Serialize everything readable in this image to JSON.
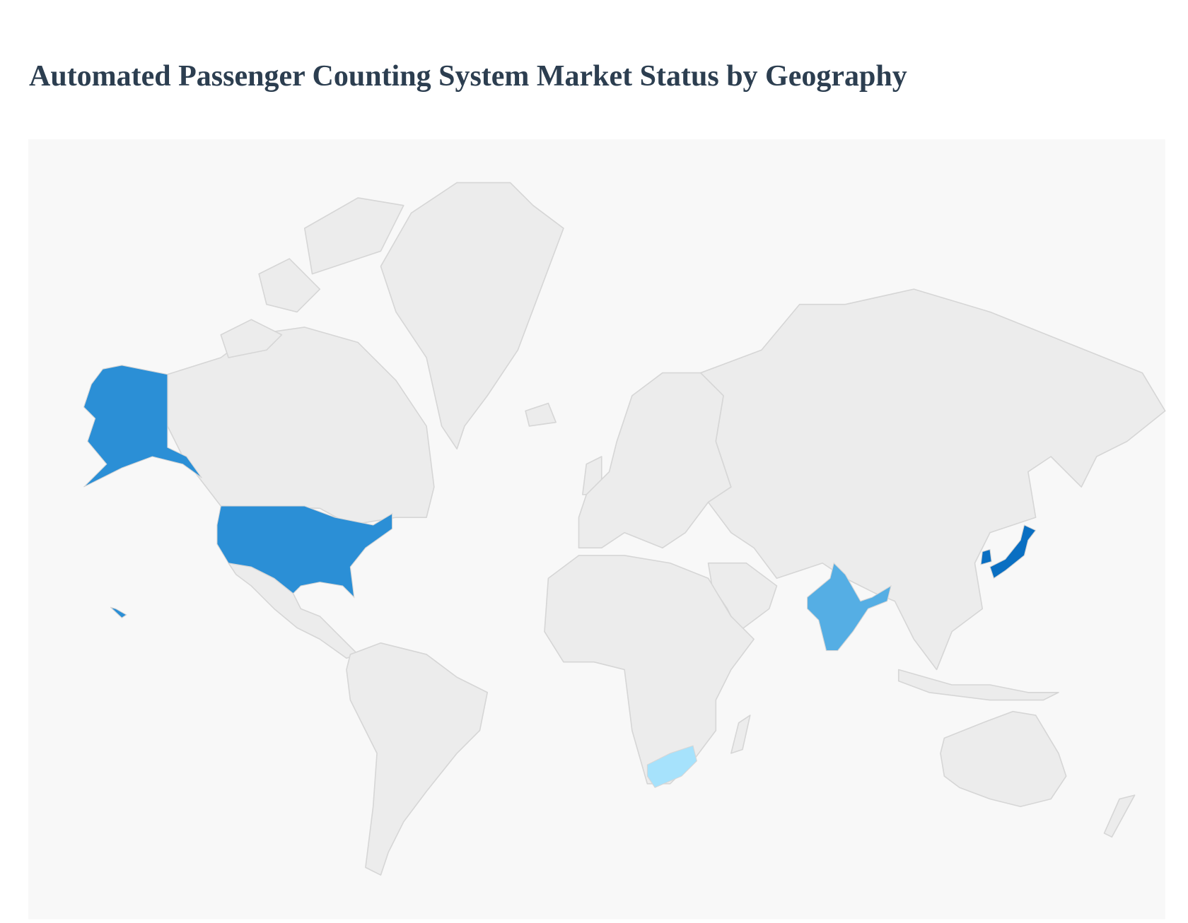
{
  "title": "Automated Passenger Counting System Market Status by Geography",
  "map": {
    "type": "choropleth",
    "projection": "world",
    "background_color": "#f8f8f8",
    "default_country_color": "#ececec",
    "border_color": "#d6d6d6",
    "highlighted_countries": [
      {
        "name": "United States",
        "color": "#2b8fd6"
      },
      {
        "name": "India",
        "color": "#55aee4"
      },
      {
        "name": "South Africa",
        "color": "#a6e2fc"
      },
      {
        "name": "Japan",
        "color": "#0a6fc2"
      },
      {
        "name": "South Korea",
        "color": "#0a6fc2"
      }
    ]
  }
}
